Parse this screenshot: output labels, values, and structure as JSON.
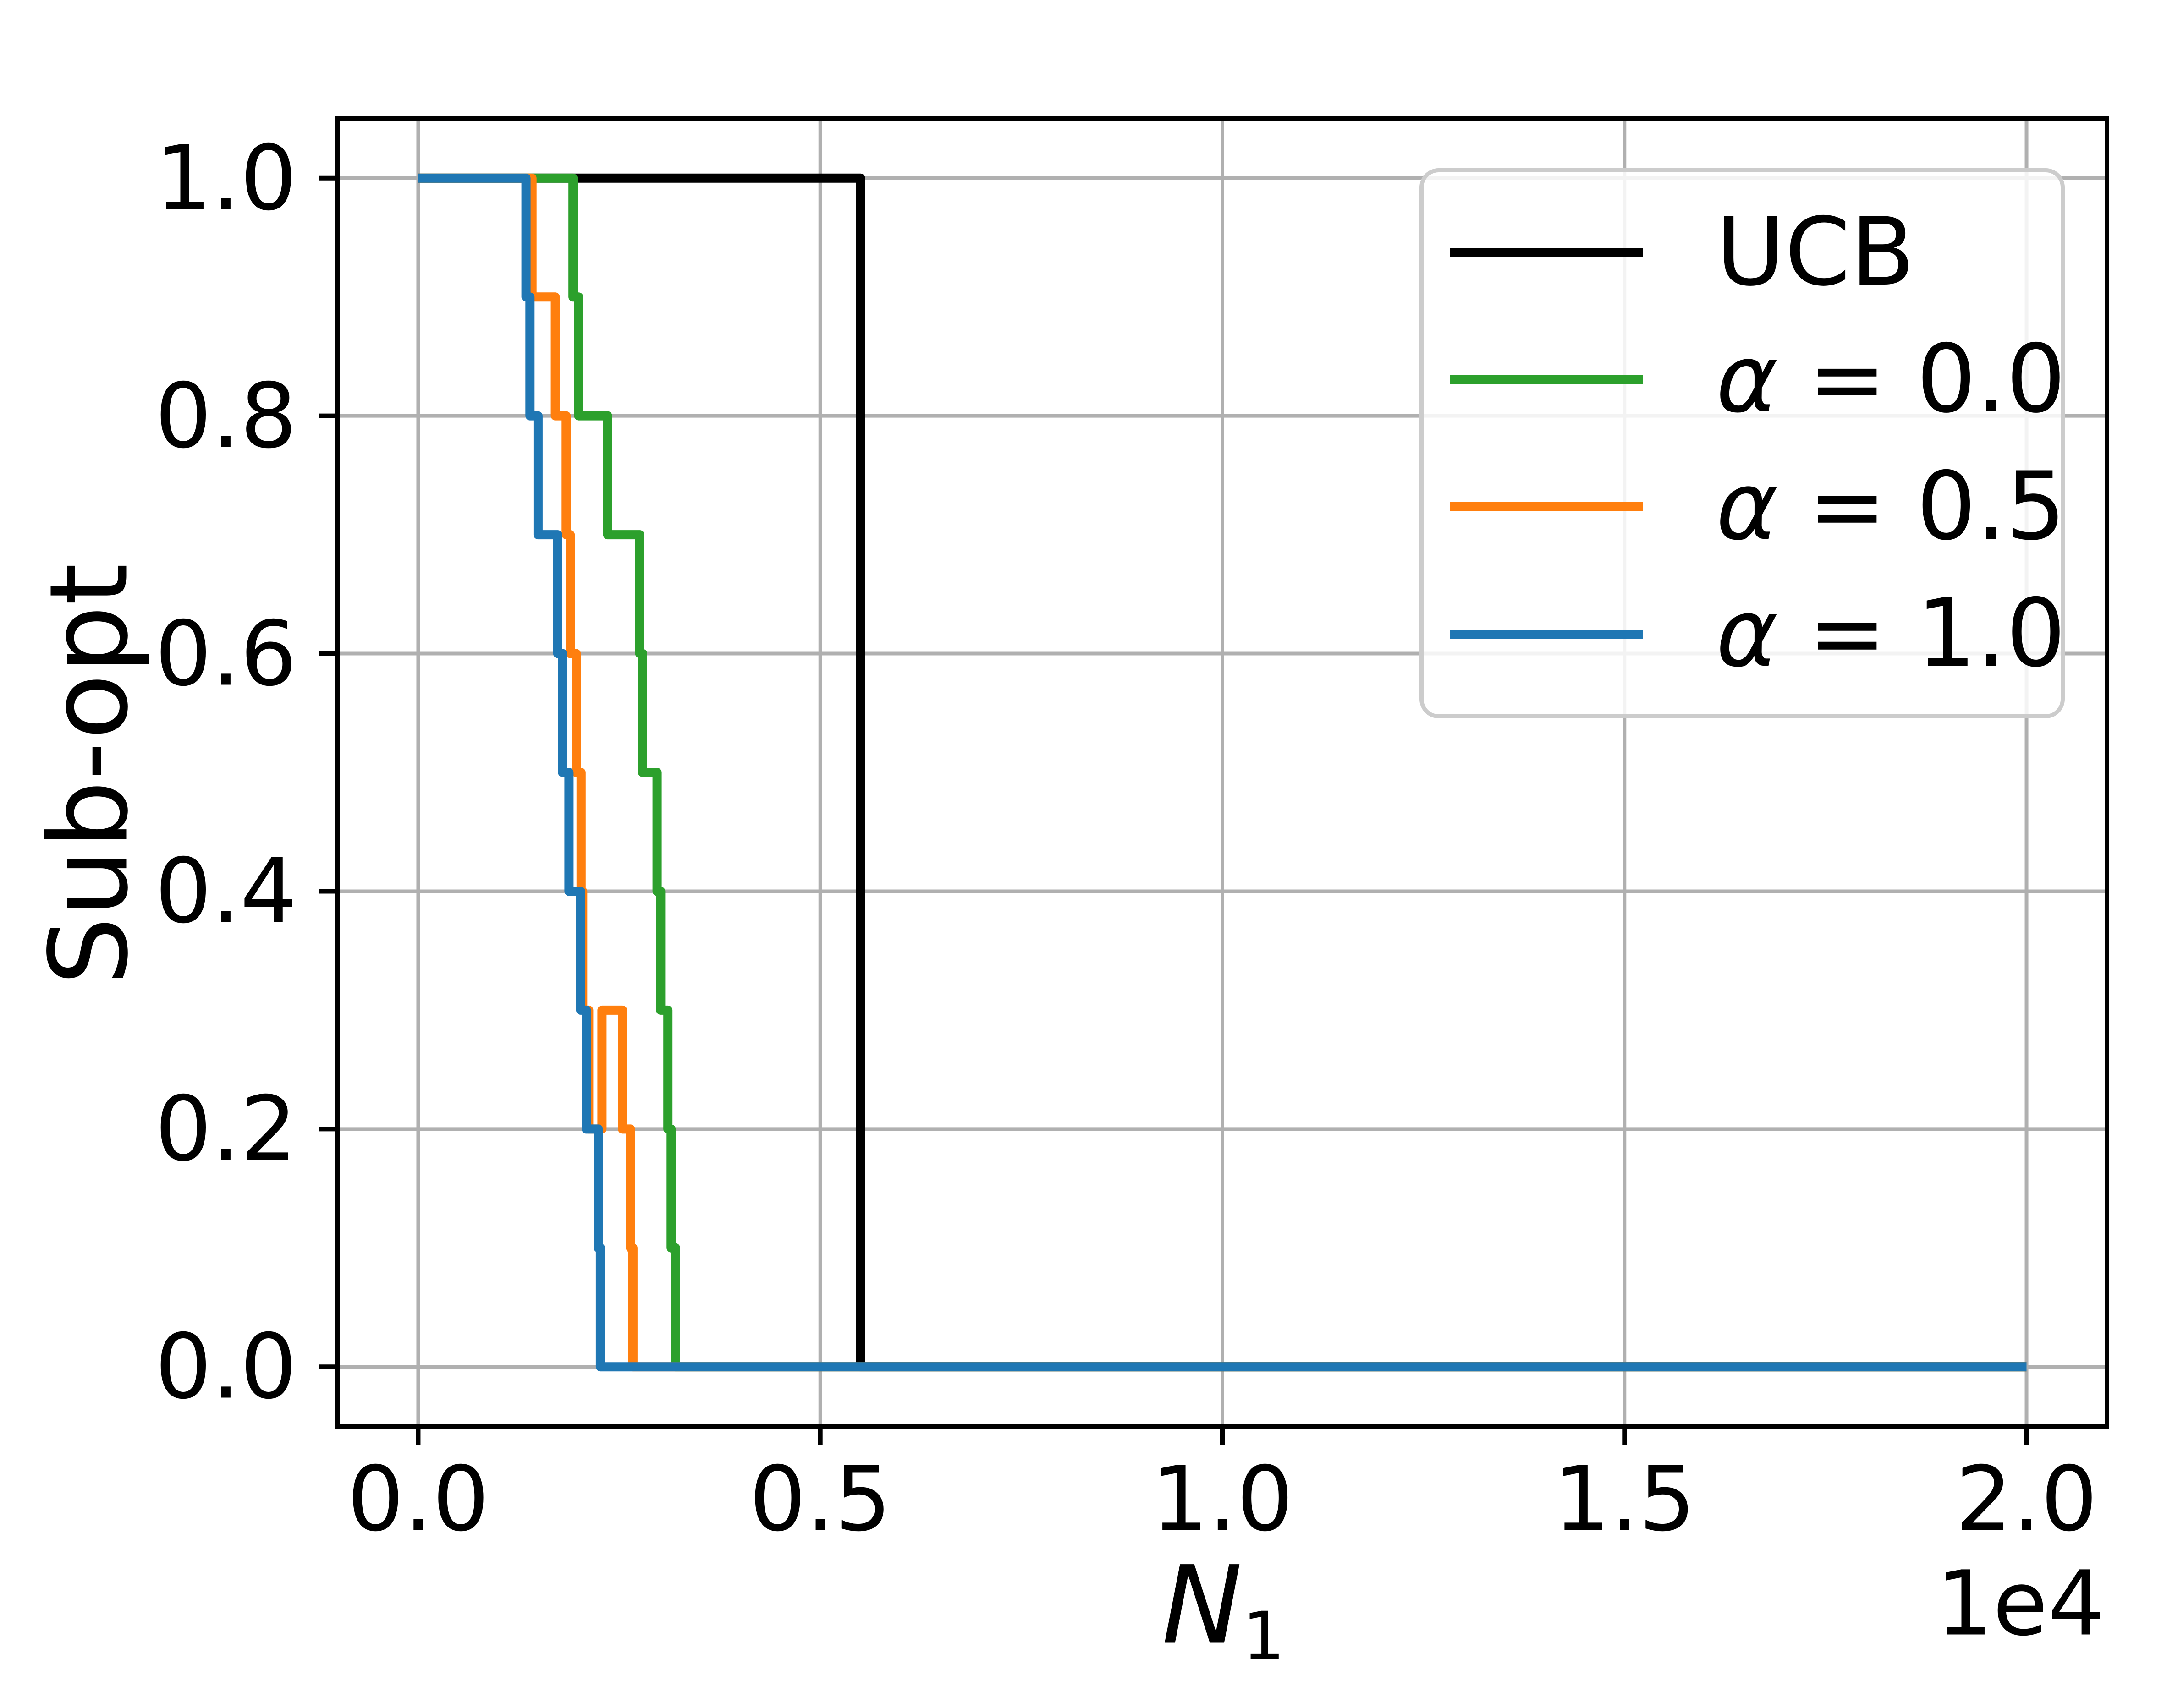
{
  "figure": {
    "ylabel": "Sub-opt",
    "xlabel_main": "N",
    "xlabel_sub": "1",
    "offset_text": "1e4"
  },
  "legend": {
    "position": "upper right",
    "entries": [
      {
        "sym": "",
        "rest": "UCB",
        "color": "#000000",
        "slug": "ucb"
      },
      {
        "sym": "α",
        "rest": " = 0.0",
        "color": "#2ca02c",
        "slug": "alpha-0-0"
      },
      {
        "sym": "α",
        "rest": " = 0.5",
        "color": "#ff7f0e",
        "slug": "alpha-0-5"
      },
      {
        "sym": "α",
        "rest": " = 1.0",
        "color": "#1f77b4",
        "slug": "alpha-1-0"
      }
    ]
  },
  "colors": {
    "grid": "#b0b0b0",
    "spine": "#000000",
    "tick": "#000000",
    "background": "#ffffff"
  },
  "chart_data": {
    "type": "line",
    "subtype": "step-post",
    "title": "",
    "xlabel": "N_1",
    "ylabel": "Sub-opt",
    "x_scale_offset": "1e4",
    "grid": true,
    "legend_position": "upper right",
    "xlim": [
      -1000,
      21000
    ],
    "ylim": [
      -0.05,
      1.05
    ],
    "x_ticks": [
      {
        "value": 0,
        "label": "0.0"
      },
      {
        "value": 5000,
        "label": "0.5"
      },
      {
        "value": 10000,
        "label": "1.0"
      },
      {
        "value": 15000,
        "label": "1.5"
      },
      {
        "value": 20000,
        "label": "2.0"
      }
    ],
    "y_ticks": [
      {
        "value": 1.0,
        "label": "1.0"
      },
      {
        "value": 0.8,
        "label": "0.8"
      },
      {
        "value": 0.6,
        "label": "0.6"
      },
      {
        "value": 0.4,
        "label": "0.4"
      },
      {
        "value": 0.2,
        "label": "0.2"
      },
      {
        "value": 0.0,
        "label": "0.0"
      }
    ],
    "x_start": 0,
    "x_end": 20000,
    "series": [
      {
        "name": "UCB",
        "slug": "ucb",
        "color": "#000000",
        "start_y": 1.0,
        "steps": [
          [
            5500,
            0.0
          ]
        ]
      },
      {
        "name": "α = 0.0",
        "slug": "alpha-0-0",
        "color": "#2ca02c",
        "start_y": 1.0,
        "steps": [
          [
            1925,
            0.9
          ],
          [
            1995,
            0.8
          ],
          [
            2355,
            0.7
          ],
          [
            2755,
            0.6
          ],
          [
            2790,
            0.5
          ],
          [
            2970,
            0.4
          ],
          [
            3015,
            0.3
          ],
          [
            3105,
            0.2
          ],
          [
            3145,
            0.1
          ],
          [
            3200,
            0.0
          ]
        ]
      },
      {
        "name": "α = 0.5",
        "slug": "alpha-0-5",
        "color": "#ff7f0e",
        "start_y": 1.0,
        "steps": [
          [
            1415,
            0.9
          ],
          [
            1705,
            0.8
          ],
          [
            1840,
            0.7
          ],
          [
            1890,
            0.6
          ],
          [
            1965,
            0.5
          ],
          [
            2025,
            0.4
          ],
          [
            2045,
            0.3
          ],
          [
            2120,
            0.2
          ],
          [
            2285,
            0.3
          ],
          [
            2540,
            0.2
          ],
          [
            2640,
            0.1
          ],
          [
            2670,
            0.0
          ]
        ]
      },
      {
        "name": "α = 1.0",
        "slug": "alpha-1-0",
        "color": "#1f77b4",
        "start_y": 1.0,
        "steps": [
          [
            1340,
            0.9
          ],
          [
            1390,
            0.8
          ],
          [
            1490,
            0.7
          ],
          [
            1735,
            0.6
          ],
          [
            1795,
            0.5
          ],
          [
            1875,
            0.4
          ],
          [
            2020,
            0.3
          ],
          [
            2090,
            0.2
          ],
          [
            2240,
            0.1
          ],
          [
            2265,
            0.0
          ]
        ]
      }
    ]
  }
}
